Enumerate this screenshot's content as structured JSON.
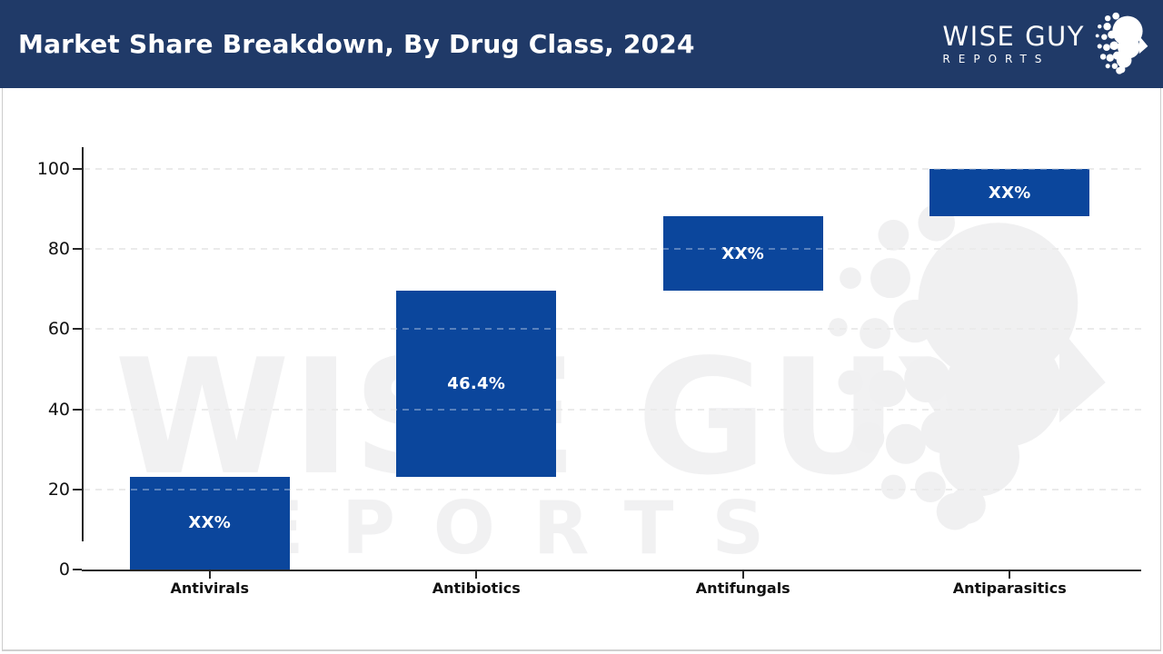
{
  "header": {
    "title": "Market Share Breakdown, By Drug Class, 2024",
    "logo": {
      "line1": "WISE GUY",
      "line2": "REPORTS"
    }
  },
  "watermark": {
    "line1": "WISE GUY",
    "line2": "REPORTS"
  },
  "colors": {
    "header_bg": "#203a68",
    "bar": "#0b469c",
    "bar_label": "#ffffff",
    "grid": "#e1e1e1",
    "axis": "#262626",
    "watermark": "#f1f1f2"
  },
  "chart_data": {
    "type": "bar",
    "subtype": "waterfall",
    "title": "Market Share Breakdown, By Drug Class, 2024",
    "categories": [
      "Antivirals",
      "Antibiotics",
      "Antifungals",
      "Antiparasitics"
    ],
    "segments": [
      {
        "category": "Antivirals",
        "start": 0,
        "end": 23.2,
        "value": 23.2,
        "label": "XX%"
      },
      {
        "category": "Antibiotics",
        "start": 23.2,
        "end": 69.6,
        "value": 46.4,
        "label": "46.4%"
      },
      {
        "category": "Antifungals",
        "start": 69.6,
        "end": 88.2,
        "value": 18.6,
        "label": "XX%"
      },
      {
        "category": "Antiparasitics",
        "start": 88.2,
        "end": 100,
        "value": 11.8,
        "label": "XX%"
      }
    ],
    "ylim": [
      0,
      100
    ],
    "yticks": [
      0,
      20,
      40,
      60,
      80,
      100
    ],
    "grid": "horizontal-dashed",
    "legend": "none",
    "xlabel": "",
    "ylabel": ""
  }
}
